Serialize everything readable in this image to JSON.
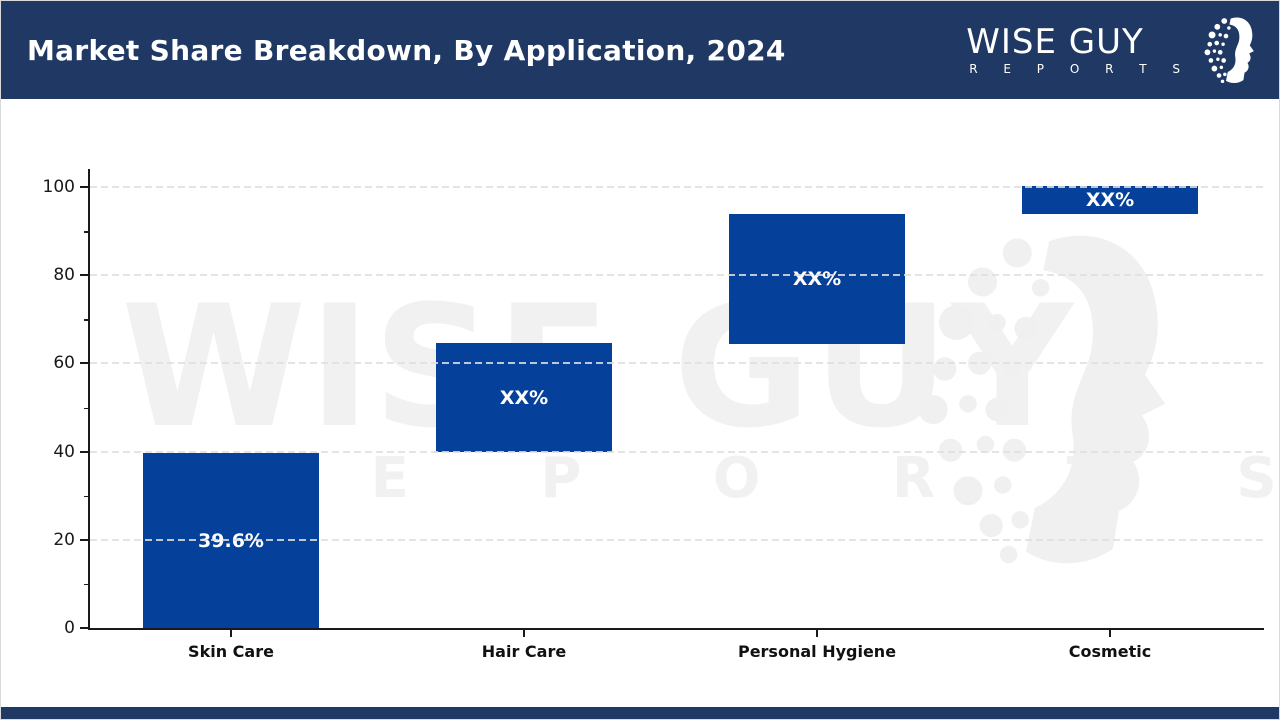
{
  "header": {
    "title": "Market Share Breakdown, By Application, 2024",
    "logo": {
      "line1": "WISE GUY",
      "line2": "R E P O R T S"
    }
  },
  "watermark": {
    "line1": "WISE GUY",
    "line2": "R E P O R T S"
  },
  "chart_data": {
    "type": "bar",
    "variant": "floating-waterfall-segments",
    "title": "Market Share Breakdown, By Application, 2024",
    "categories": [
      "Skin Care",
      "Hair Care",
      "Personal Hygiene",
      "Cosmetic"
    ],
    "segments": [
      {
        "category": "Skin Care",
        "start": 0,
        "end": 39.6,
        "label_text": "39.6%"
      },
      {
        "category": "Hair Care",
        "start": 39.9,
        "end": 64.6,
        "label_text": "XX%"
      },
      {
        "category": "Personal Hygiene",
        "start": 64.4,
        "end": 93.9,
        "label_text": "XX%"
      },
      {
        "category": "Cosmetic",
        "start": 93.9,
        "end": 100.2,
        "label_text": "XX%"
      }
    ],
    "xlabel": "",
    "ylabel": "",
    "yticks": [
      0,
      20,
      40,
      60,
      80,
      100
    ],
    "yticks_minor": [
      10,
      30,
      50,
      70,
      90
    ],
    "ylim": [
      0,
      104
    ],
    "grid": {
      "axis": "y",
      "style": "dashed",
      "color": "#e0e0e0",
      "drawn_over_bars": true
    },
    "bar_color": "#05419a",
    "bar_label_color": "#ffffff",
    "header_color": "#1f3864",
    "legend": null
  }
}
